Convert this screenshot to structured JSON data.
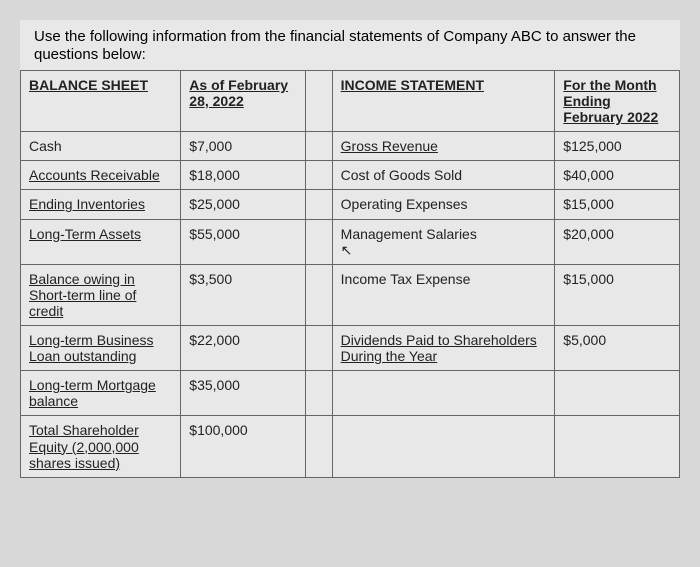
{
  "instruction": "Use the following information from the financial statements of Company ABC to answer the questions below:",
  "headers": {
    "balanceSheet": "BALANCE SHEET",
    "asOf": "As of February 28, 2022",
    "incomeStatement": "INCOME STATEMENT",
    "forMonth": "For the Month Ending February 2022"
  },
  "bs": {
    "cash": {
      "label": "Cash",
      "value": "$7,000"
    },
    "ar": {
      "label": "Accounts Receivable",
      "value": "$18,000"
    },
    "inventory": {
      "label": "Ending Inventories",
      "value": "$25,000"
    },
    "longTermAssets": {
      "label": "Long-Term Assets",
      "value": "$55,000"
    },
    "credit": {
      "label": "Balance owing in Short-term line of credit",
      "value": "$3,500"
    },
    "loan": {
      "label": "Long-term Business Loan outstanding",
      "value": "$22,000"
    },
    "mortgage": {
      "label": "Long-term Mortgage balance",
      "value": "$35,000"
    },
    "equity": {
      "label": "Total Shareholder Equity (2,000,000 shares issued)",
      "value": "$100,000"
    }
  },
  "is": {
    "revenue": {
      "label": "Gross Revenue",
      "value": "$125,000"
    },
    "cogs": {
      "label": "Cost of Goods Sold",
      "value": "$40,000"
    },
    "opex": {
      "label": "Operating Expenses",
      "value": "$15,000"
    },
    "salaries": {
      "label": "Management Salaries",
      "value": "$20,000"
    },
    "tax": {
      "label": "Income Tax Expense",
      "value": "$15,000"
    },
    "dividends": {
      "label": "Dividends Paid to Shareholders During the Year",
      "value": "$5,000"
    }
  },
  "colors": {
    "background": "#d8d8d8",
    "tableBg": "#e8e8e8",
    "border": "#666666",
    "text": "#222222"
  }
}
